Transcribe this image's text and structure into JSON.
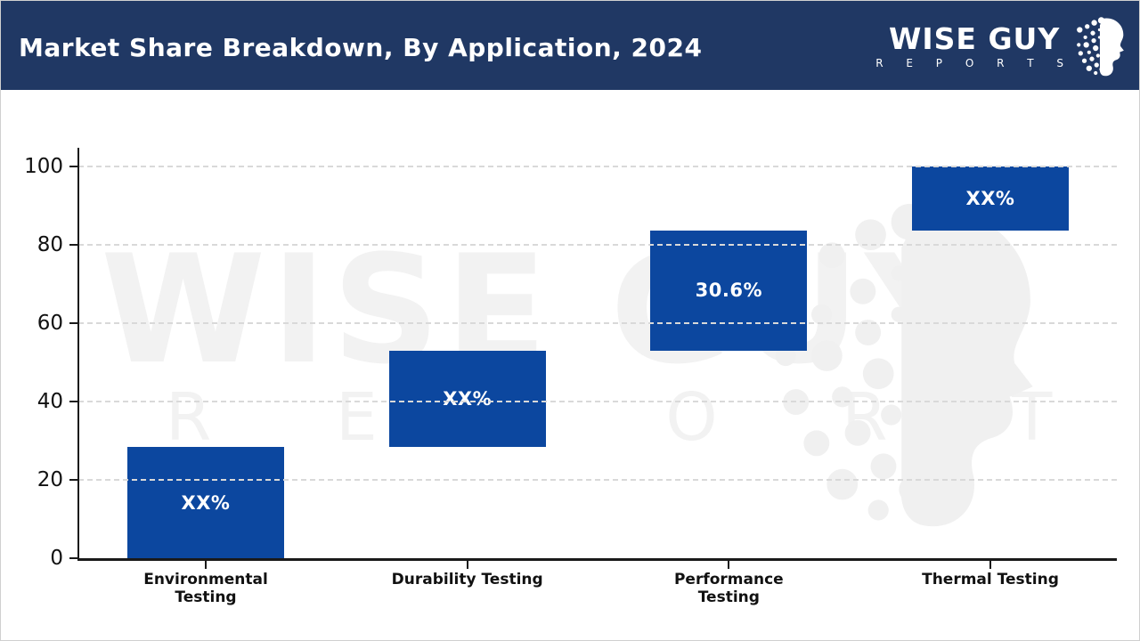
{
  "page": {
    "background": "#ffffff",
    "border_color": "#d0d0d0"
  },
  "header": {
    "background": "#203864",
    "title": "Market Share Breakdown, By Application, 2024",
    "logo": {
      "name": "WISE GUY",
      "sub": "R E P O R T S"
    }
  },
  "watermark": {
    "name": "WISE GUY",
    "sub": "R E P O R T S"
  },
  "chart_data": {
    "type": "bar",
    "variant": "floating-segment-waterfall",
    "title": "Market Share Breakdown, By Application, 2024",
    "categories": [
      "Environmental Testing",
      "Durability Testing",
      "Performance Testing",
      "Thermal Testing"
    ],
    "category_label_lines": [
      [
        "Environmental",
        "Testing"
      ],
      [
        "Durability Testing"
      ],
      [
        "Performance",
        "Testing"
      ],
      [
        "Thermal Testing"
      ]
    ],
    "segments": [
      {
        "category": "Environmental Testing",
        "start": 0,
        "end": 28.4,
        "label": "XX%"
      },
      {
        "category": "Durability Testing",
        "start": 28.4,
        "end": 53.0,
        "label": "XX%"
      },
      {
        "category": "Performance Testing",
        "start": 53.0,
        "end": 83.6,
        "label": "30.6%"
      },
      {
        "category": "Thermal Testing",
        "start": 83.6,
        "end": 100,
        "label": "XX%"
      }
    ],
    "ylim": [
      0,
      100
    ],
    "yticks": [
      0,
      20,
      40,
      60,
      80,
      100
    ],
    "xlabel": "",
    "ylabel": "",
    "legend": "none",
    "grid": {
      "horizontal": true,
      "style": "dashed",
      "color": "#d9d9d9"
    },
    "bar_color": "#0c479f",
    "bar_label_color": "#ffffff",
    "axis_color": "#1a1a1a"
  }
}
